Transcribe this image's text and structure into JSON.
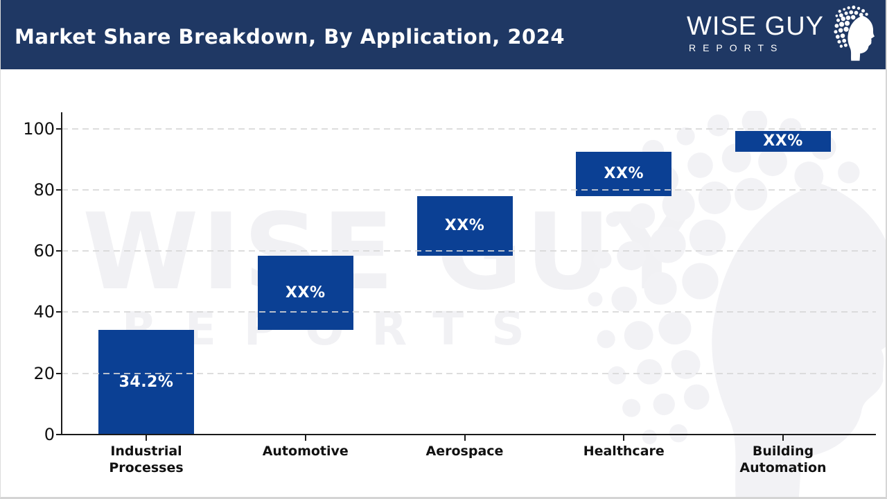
{
  "header": {
    "title": "Market Share Breakdown, By Application, 2024",
    "logo": {
      "brand_line1": "WISE GUY",
      "brand_line2": "REPORTS",
      "face_icon": "dotted-face-profile"
    }
  },
  "watermark": {
    "line1": "WISE GUY",
    "line2": "REPORTS",
    "face_icon": "dotted-face-profile"
  },
  "colors": {
    "header_bg": "#1f3864",
    "bar": "#0b4094",
    "bar_label": "#ffffff",
    "grid": "rgba(215,215,215,0.85)",
    "axis": "#1a1a1a",
    "watermark": "#f1f1f4"
  },
  "chart_data": {
    "type": "bar",
    "variant": "waterfall",
    "title": "Market Share Breakdown, By Application, 2024",
    "categories": [
      "Industrial Processes",
      "Automotive",
      "Aerospace",
      "Healthcare",
      "Building Automation"
    ],
    "segments": [
      {
        "category": "Industrial Processes",
        "start": 0,
        "end": 34.2,
        "label": "34.2%"
      },
      {
        "category": "Automotive",
        "start": 34.2,
        "end": 58.4,
        "label": "XX%"
      },
      {
        "category": "Aerospace",
        "start": 58.4,
        "end": 78.0,
        "label": "XX%"
      },
      {
        "category": "Healthcare",
        "start": 78.0,
        "end": 92.5,
        "label": "XX%"
      },
      {
        "category": "Building Automation",
        "start": 92.5,
        "end": 99.3,
        "label": "XX%"
      }
    ],
    "xlabel": "",
    "ylabel": "",
    "ylim": [
      0,
      100
    ],
    "yticks": [
      0,
      20,
      40,
      60,
      80,
      100
    ],
    "grid": "horizontal-dashed",
    "legend": "none"
  }
}
